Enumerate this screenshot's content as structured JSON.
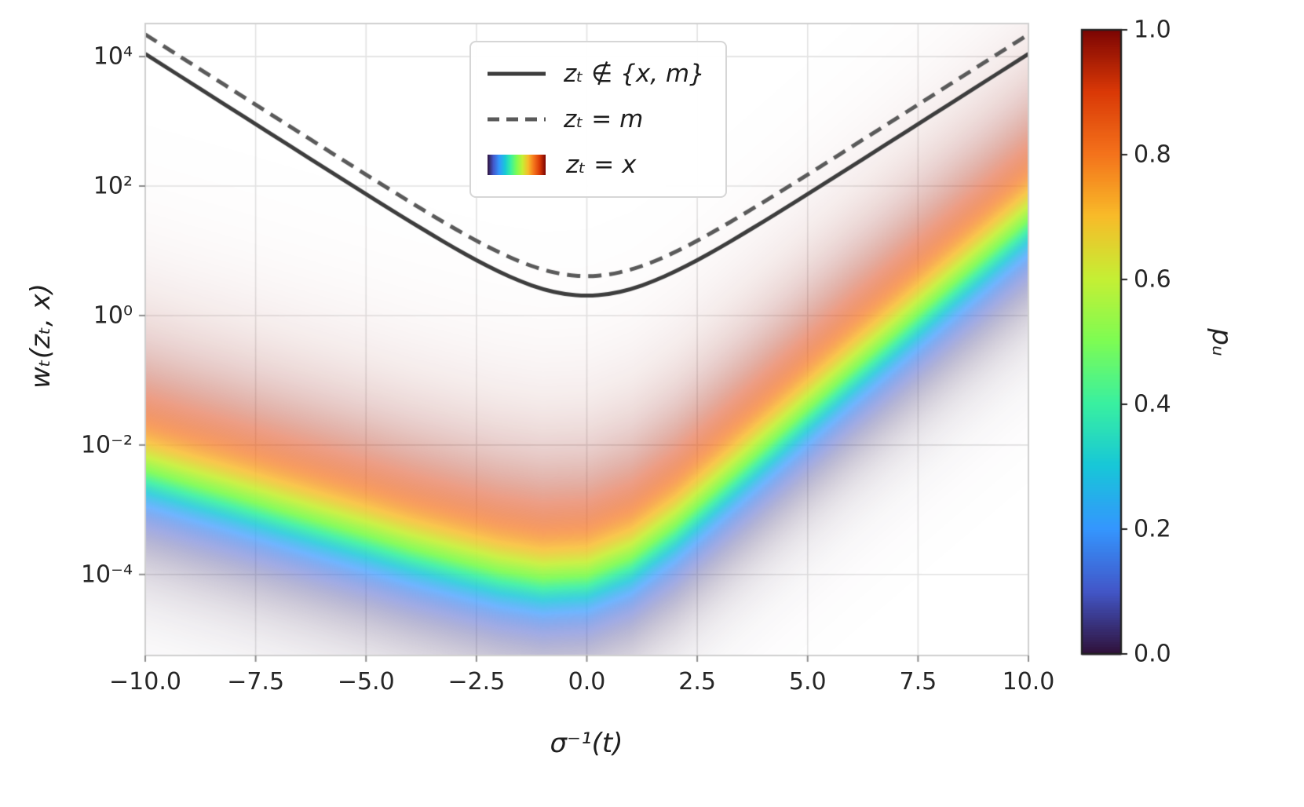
{
  "axes": {
    "xlabel": "σ⁻¹(t)",
    "ylabel": "wₜ(zₜ, x)",
    "x_ticks": {
      "values": [
        -10,
        -7.5,
        -5,
        -2.5,
        0,
        2.5,
        5,
        7.5,
        10
      ],
      "labels": [
        "−10.0",
        "−7.5",
        "−5.0",
        "−2.5",
        "0.0",
        "2.5",
        "5.0",
        "7.5",
        "10.0"
      ]
    },
    "y_ticks": {
      "values": [
        10000,
        100,
        1,
        0.01,
        0.0001
      ],
      "labels": [
        "10⁴",
        "10²",
        "10⁰",
        "10⁻²",
        "10⁻⁴"
      ]
    }
  },
  "legend": {
    "entries": [
      {
        "sample": "solid-line",
        "label": "zₜ ∉ {x, m}"
      },
      {
        "sample": "dashed-line",
        "label": "zₜ = m"
      },
      {
        "sample": "rainbow-gradient",
        "label": "zₜ = x"
      }
    ]
  },
  "colorbar": {
    "label": "pᵤ",
    "range": [
      0,
      1
    ],
    "ticks": {
      "values": [
        0,
        0.2,
        0.4,
        0.6,
        0.8,
        1
      ],
      "labels": [
        "0.0",
        "0.2",
        "0.4",
        "0.6",
        "0.8",
        "1.0"
      ]
    },
    "colormap": [
      [
        0.0,
        "#30123B"
      ],
      [
        0.1,
        "#4257C9"
      ],
      [
        0.2,
        "#3496FE"
      ],
      [
        0.3,
        "#17C7D8"
      ],
      [
        0.4,
        "#39F0A0"
      ],
      [
        0.5,
        "#7DFC53"
      ],
      [
        0.6,
        "#C5EF34"
      ],
      [
        0.7,
        "#F8BB29"
      ],
      [
        0.8,
        "#F4721B"
      ],
      [
        0.9,
        "#D93806"
      ],
      [
        1.0,
        "#7A0403"
      ]
    ]
  },
  "style": {
    "solid_color": "#3d3d3d",
    "dashed_color": "#5a5a5a",
    "grid_color": "#e2e2e2",
    "spine_color": "#cfcfcf",
    "tick_color": "#8c8c8c",
    "cb_border_color": "#222222"
  },
  "chart_data": {
    "type": "line+heatmap",
    "title": "",
    "xlabel": "σ⁻¹(t)",
    "ylabel": "wₜ(zₜ, x)",
    "xlim": [
      -10,
      10
    ],
    "ylim": [
      5.6e-06,
      32400
    ],
    "yscale": "log",
    "grid": true,
    "legend_position": "upper center-left",
    "x": [
      -10,
      -9.5,
      -9,
      -8.5,
      -8,
      -7.5,
      -7,
      -6.5,
      -6,
      -5.5,
      -5,
      -4.5,
      -4,
      -3.5,
      -3,
      -2.5,
      -2,
      -1.5,
      -1,
      -0.5,
      0,
      0.5,
      1,
      1.5,
      2,
      2.5,
      3,
      3.5,
      4,
      4.5,
      5,
      5.5,
      6,
      6.5,
      7,
      7.5,
      8,
      8.5,
      9,
      9.5,
      10
    ],
    "series": [
      {
        "name": "zₜ ∉ {x, m}",
        "style": "solid",
        "values": [
          11014,
          6681,
          4053,
          2458,
          1491,
          905,
          549.3,
          333.6,
          202.7,
          123.3,
          75.21,
          46.01,
          28.31,
          17.57,
          11.07,
          7.132,
          4.762,
          3.352,
          2.543,
          2.128,
          2,
          2.128,
          2.543,
          3.352,
          4.762,
          7.132,
          11.07,
          17.57,
          28.31,
          46.01,
          75.21,
          123.3,
          202.7,
          333.6,
          549.3,
          905,
          1491,
          2458,
          4053,
          6681,
          11014
        ]
      },
      {
        "name": "zₜ = m",
        "style": "dashed",
        "values": [
          22028,
          13362,
          8105,
          4917,
          2983,
          1810,
          1099,
          667.1,
          405.4,
          246.7,
          150.4,
          92.03,
          56.62,
          35.15,
          22.14,
          14.26,
          9.524,
          6.705,
          5.086,
          4.256,
          4,
          4.256,
          5.086,
          6.705,
          9.524,
          14.26,
          22.14,
          35.15,
          56.62,
          92.03,
          150.4,
          246.7,
          405.4,
          667.1,
          1099,
          1810,
          2983,
          4917,
          8105,
          13362,
          22028
        ]
      }
    ],
    "heatmap": {
      "name": "zₜ = x",
      "color_by": "pᵤ",
      "color_range": [
        0,
        1
      ],
      "x": [
        -10,
        -9,
        -8,
        -7,
        -6,
        -5,
        -4,
        -3,
        -2,
        -1,
        0,
        1,
        2,
        3,
        4,
        5,
        6,
        7,
        8,
        9,
        10
      ],
      "center_w": [
        0.004,
        0.0025,
        0.0016,
        0.001,
        0.00063,
        0.0004,
        0.00025,
        0.000166,
        0.000112,
        8.7e-05,
        9.5e-05,
        0.000178,
        0.00056,
        0.00224,
        0.0089,
        0.0355,
        0.141,
        0.537,
        2.09,
        7.94,
        30.2
      ],
      "note": "vertical rainbow band: w increases with pᵤ (red above center, blue below), ~±0.7 decades saturated spread around center, fading haze beyond"
    }
  }
}
